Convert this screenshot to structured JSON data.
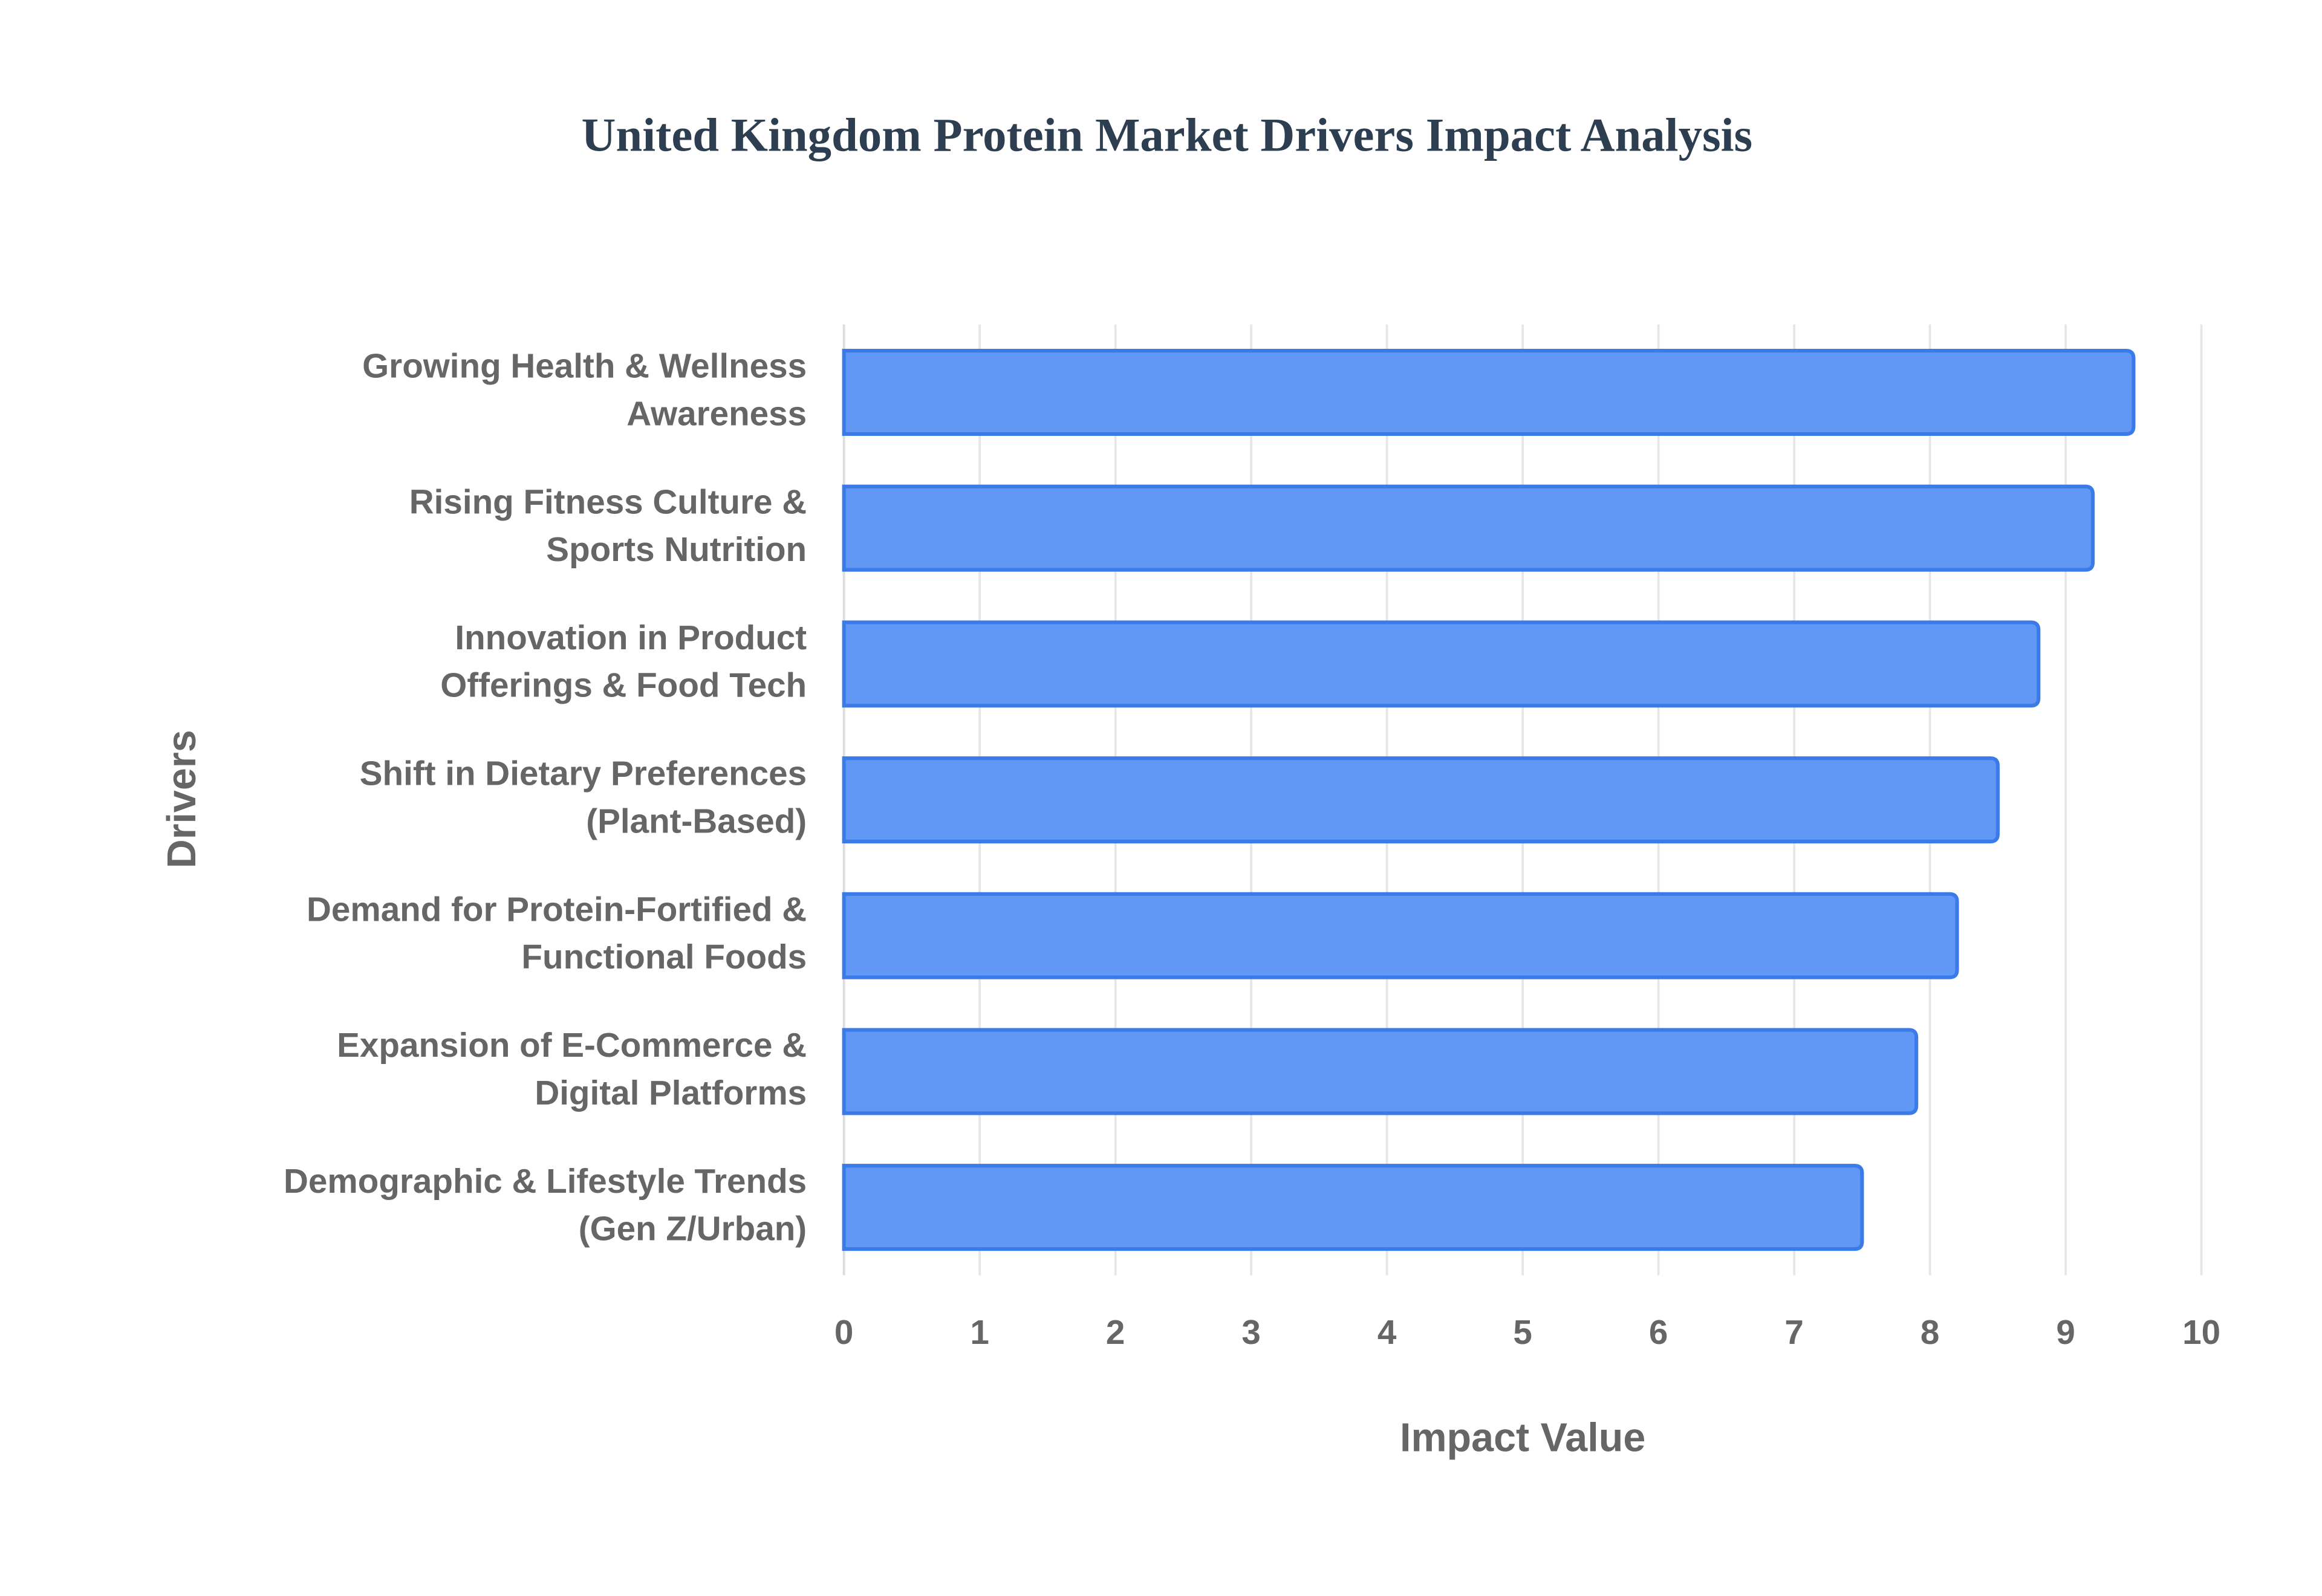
{
  "chart_data": {
    "type": "bar",
    "orientation": "horizontal",
    "title": "United Kingdom Protein Market Drivers Impact Analysis",
    "x_label": "Impact Value",
    "y_label": "Drivers",
    "categories": [
      "Growing Health & Wellness Awareness",
      "Rising Fitness Culture & Sports Nutrition",
      "Innovation in Product Offerings & Food Tech",
      "Shift in Dietary Preferences (Plant-Based)",
      "Demand for Protein-Fortified & Functional Foods",
      "Expansion of E-Commerce & Digital Platforms",
      "Demographic & Lifestyle Trends (Gen Z/Urban)"
    ],
    "values": [
      9.5,
      9.2,
      8.8,
      8.5,
      8.2,
      7.9,
      7.5
    ],
    "color": "#6198f5",
    "edge_color": "#3b7be8",
    "xlim": [
      0,
      10
    ],
    "xticks": [
      0,
      1,
      2,
      3,
      4,
      5,
      6,
      7,
      8,
      9,
      10
    ],
    "grid": true
  }
}
